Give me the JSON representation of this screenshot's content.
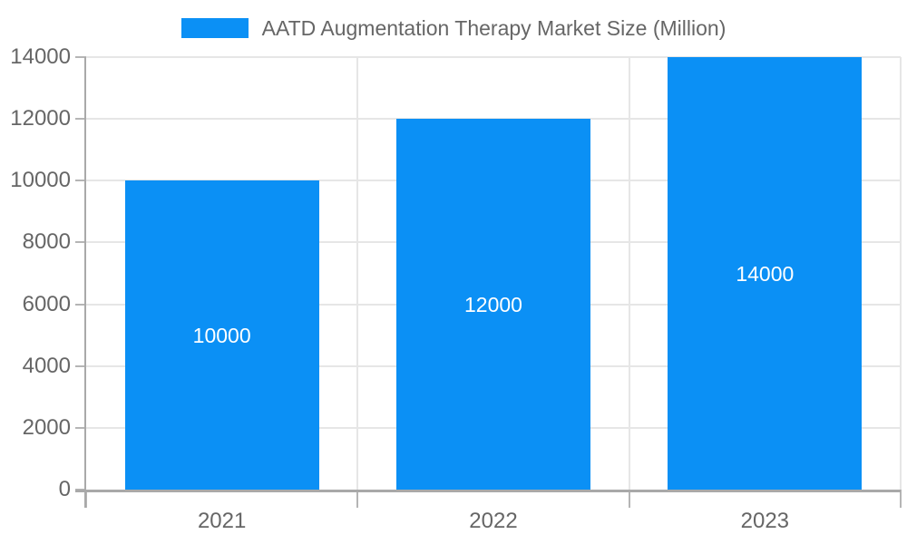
{
  "legend": {
    "label": "AATD Augmentation Therapy Market Size (Million)"
  },
  "chart_data": {
    "type": "bar",
    "title": "AATD Augmentation Therapy Market Size (Million)",
    "categories": [
      "2021",
      "2022",
      "2023"
    ],
    "values": [
      10000,
      12000,
      14000
    ],
    "data_labels": [
      "10000",
      "12000",
      "14000"
    ],
    "yticks": [
      0,
      2000,
      4000,
      6000,
      8000,
      10000,
      12000,
      14000
    ],
    "ylim": [
      0,
      14000
    ],
    "xlabel": "",
    "ylabel": "",
    "grid": true,
    "legend_position": "top-center",
    "colors": {
      "bar": "#0b90f5",
      "grid_line": "#e6e6e6",
      "axis_line": "#a9a9a9",
      "tick_mark": "#b5b5b5",
      "axis_text": "#666666",
      "value_label": "#ffffff",
      "background": "#ffffff"
    }
  }
}
